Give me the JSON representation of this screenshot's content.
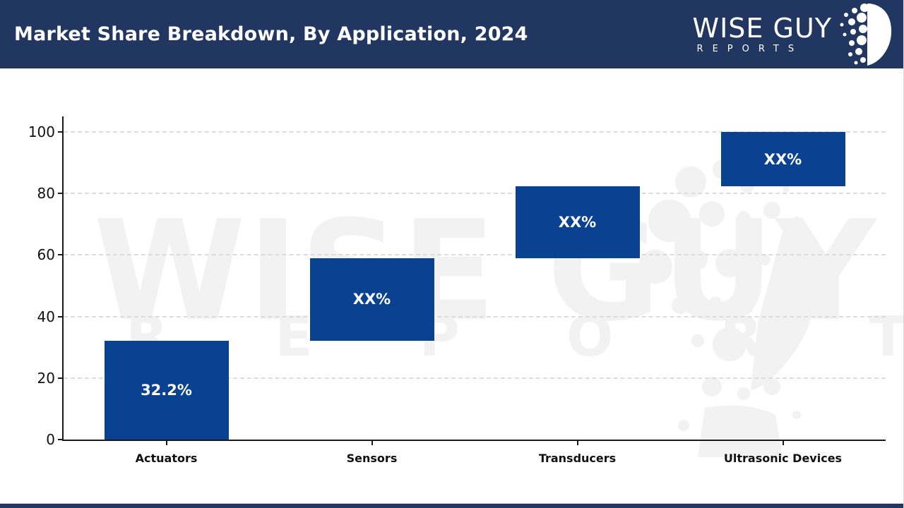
{
  "header": {
    "title": "Market Share Breakdown, By Application, 2024",
    "logo": {
      "line1": "WISE GUY",
      "line2": "REPORTS"
    }
  },
  "watermark": {
    "line1": "WISE GUY",
    "line2": "R E P O R T S"
  },
  "chart_data": {
    "type": "bar",
    "subtype": "waterfall-floating-bars",
    "title": "Market Share Breakdown, By Application, 2024",
    "categories": [
      "Actuators",
      "Sensors",
      "Transducers",
      "Ultrasonic Devices"
    ],
    "segments": [
      {
        "category": "Actuators",
        "start": 0,
        "end": 32.2,
        "label": "32.2%"
      },
      {
        "category": "Sensors",
        "start": 32.2,
        "end": 59.0,
        "label": "XX%"
      },
      {
        "category": "Transducers",
        "start": 59.0,
        "end": 82.3,
        "label": "XX%"
      },
      {
        "category": "Ultrasonic Devices",
        "start": 82.3,
        "end": 100,
        "label": "XX%"
      }
    ],
    "values": [
      32.2,
      26.8,
      23.3,
      17.7
    ],
    "yticks": [
      0,
      20,
      40,
      60,
      80,
      100
    ],
    "ylim": [
      0,
      105
    ],
    "xlabel": "",
    "ylabel": "",
    "grid": "horizontal-dashed",
    "legend": "none",
    "bar_color": "#0a4191",
    "bar_label_color": "#ffffff"
  },
  "colors": {
    "header_bg": "#223662",
    "footer_bg": "#223662",
    "bar": "#0a4191",
    "axis": "#1a1a1a",
    "grid": "#dcdcdc",
    "watermark": "#f2f2f3"
  }
}
